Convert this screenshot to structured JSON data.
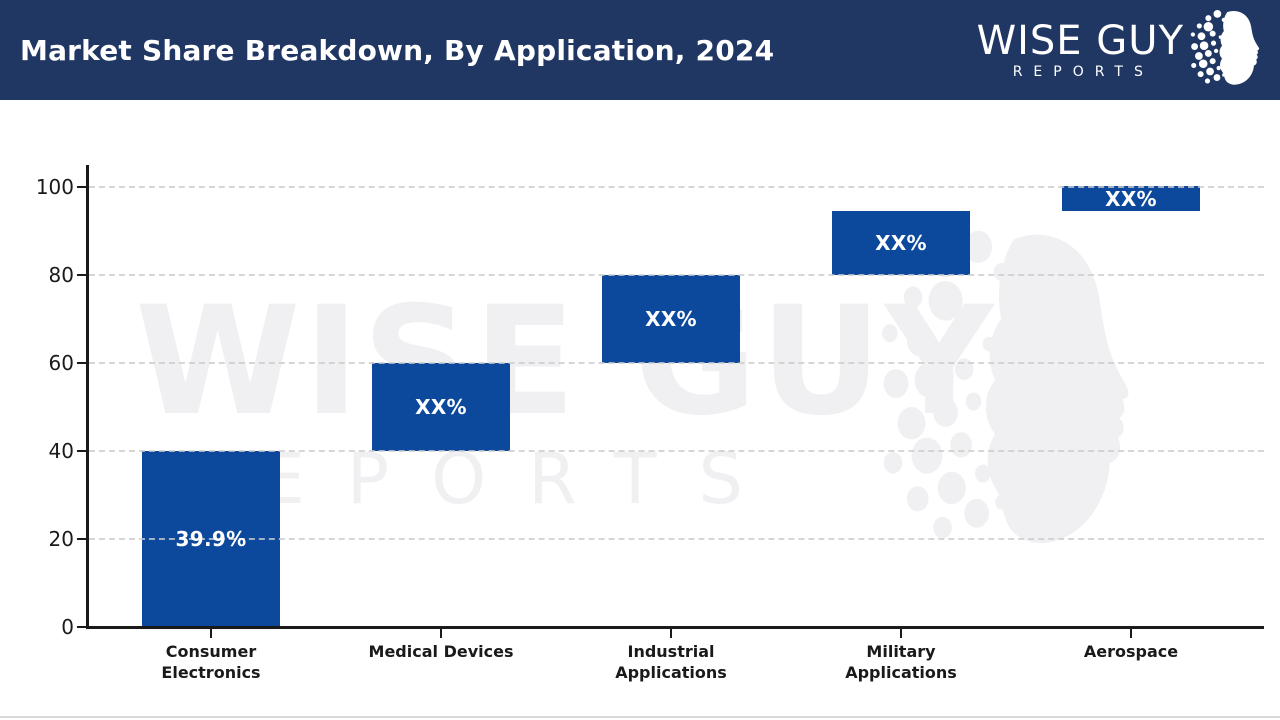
{
  "header": {
    "title": "Market Share Breakdown, By Application, 2024",
    "logo": {
      "line1": "WISE GUY",
      "line2": "REPORTS"
    }
  },
  "watermark": {
    "line1": "WISE GUY",
    "line2": "REPORTS"
  },
  "chart_data": {
    "type": "bar",
    "subtype": "waterfall",
    "title": "Market Share Breakdown, By Application, 2024",
    "categories": [
      "Consumer\nElectronics",
      "Medical Devices",
      "Industrial\nApplications",
      "Military\nApplications",
      "Aerospace"
    ],
    "segments": [
      {
        "category": "Consumer Electronics",
        "start": 0,
        "end": 40,
        "label": "39.9%"
      },
      {
        "category": "Medical Devices",
        "start": 40,
        "end": 60,
        "label": "XX%"
      },
      {
        "category": "Industrial Applications",
        "start": 60,
        "end": 80,
        "label": "XX%"
      },
      {
        "category": "Military Applications",
        "start": 80,
        "end": 94.5,
        "label": "XX%"
      },
      {
        "category": "Aerospace",
        "start": 94.5,
        "end": 100.2,
        "label": "XX%"
      }
    ],
    "yticks": [
      0,
      20,
      40,
      60,
      80,
      100
    ],
    "ylim": [
      0,
      105
    ],
    "grid": true,
    "legend": "none",
    "bar_color": "#0C499D"
  },
  "colors": {
    "header_bg": "#203764",
    "bar": "#0C499D",
    "watermark": "#F0F0F2",
    "gridline": "#CDCDCD",
    "axis": "#1A1A1A",
    "bottom_line": "#D9D9D9"
  }
}
